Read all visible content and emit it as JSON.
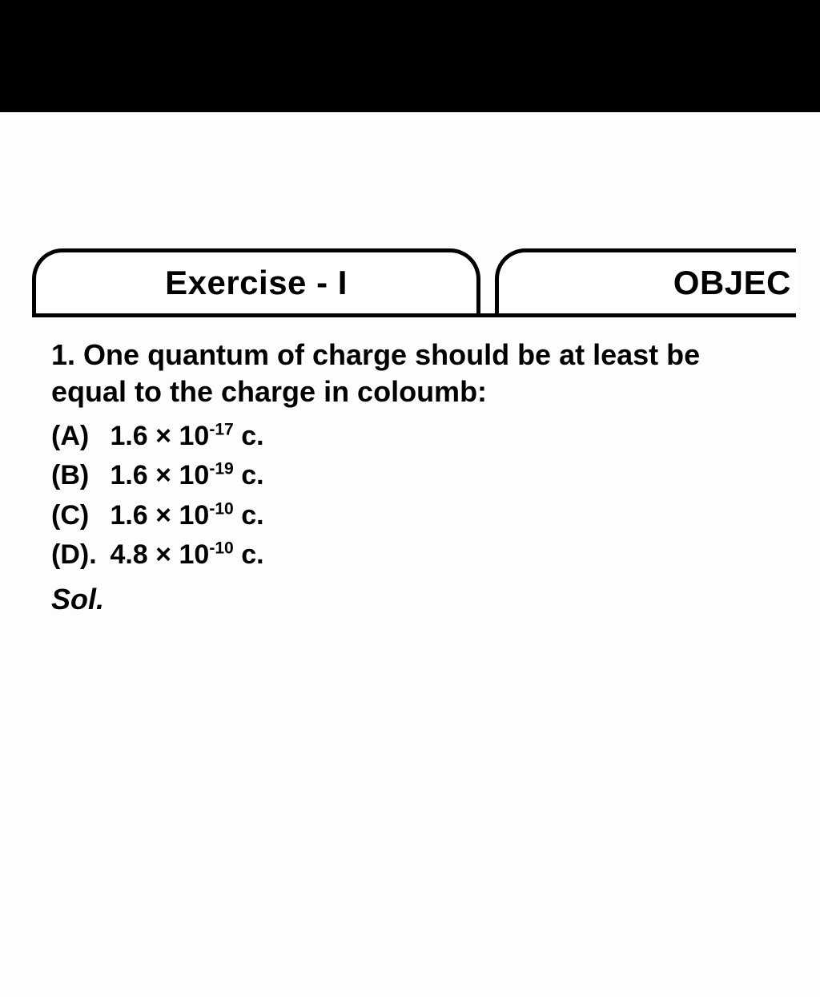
{
  "tabs": {
    "left": "Exercise - I",
    "right": "OBJEC"
  },
  "question": {
    "number": "1.",
    "text": "One quantum of charge should be at least be equal to the charge in coloumb:"
  },
  "options": [
    {
      "label": "(A)",
      "base": "1.6",
      "exp": "-17",
      "unit": "c."
    },
    {
      "label": "(B)",
      "base": "1.6",
      "exp": "-19",
      "unit": "c."
    },
    {
      "label": "(C)",
      "base": "1.6",
      "exp": "-10",
      "unit": "c."
    },
    {
      "label": "(D).",
      "base": "4.8",
      "exp": "-10",
      "unit": "c."
    }
  ],
  "solution_label": "Sol.",
  "colors": {
    "page_bg": "#fdfdfd",
    "outer_bg": "#000000",
    "text": "#000000",
    "border": "#000000"
  },
  "typography": {
    "tab_fontsize": 42,
    "question_fontsize": 36,
    "option_fontsize": 34,
    "sol_fontsize": 36
  }
}
